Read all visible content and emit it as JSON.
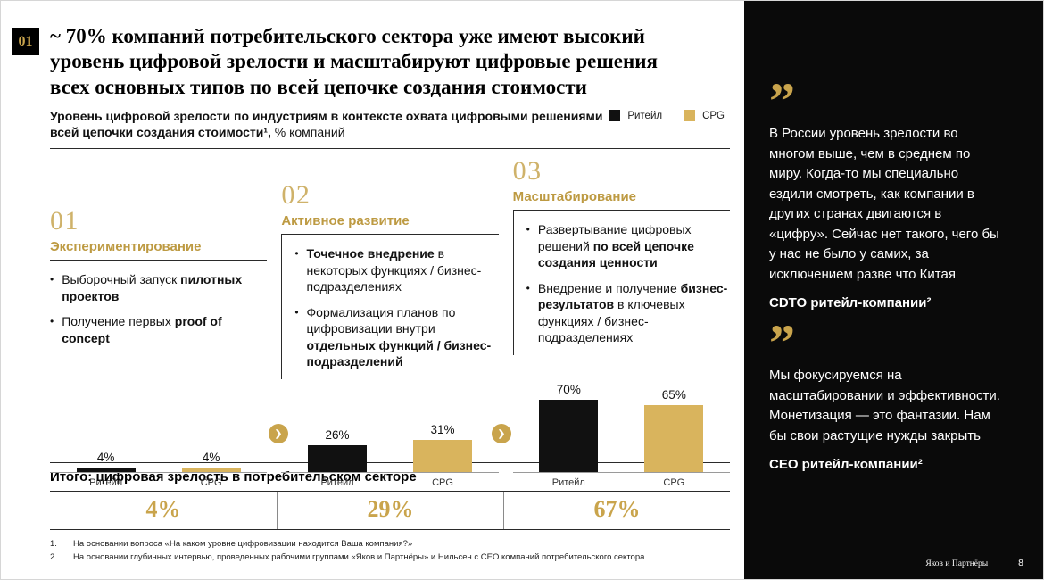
{
  "colors": {
    "retail": "#111111",
    "cpg": "#D9B45D",
    "gold": "#C9A44C",
    "black_badge": "#000000"
  },
  "icons": {
    "chevron": "❯",
    "quote": "”"
  },
  "header": {
    "badge": "01",
    "title": "~ 70% компаний потребительского сектора уже имеют высокий уровень цифровой зрелости и масштабируют цифровые решения всех основных типов по всей цепочке создания стоимости",
    "subtitle_bold": "Уровень цифровой зрелости по индустриям в контексте охвата цифровыми решениями всей цепочки создания стоимости¹,",
    "subtitle_normal": "% компаний"
  },
  "legend": {
    "items": [
      {
        "label": "Ритейл"
      },
      {
        "label": "CPG"
      }
    ]
  },
  "stages": [
    {
      "number": "01",
      "name": "Экспериментирование",
      "bullets": [
        {
          "segments": [
            {
              "text": "Выборочный запуск",
              "bold": false
            },
            {
              "text": "пилотных проектов",
              "bold": true
            }
          ]
        },
        {
          "segments": [
            {
              "text": "Получение первых",
              "bold": false
            },
            {
              "text": "proof of concept",
              "bold": true
            }
          ]
        }
      ],
      "bars": [
        {
          "label": "Ритейл",
          "display": "4%"
        },
        {
          "label": "CPG",
          "display": "4%"
        }
      ]
    },
    {
      "number": "02",
      "name": "Активное развитие",
      "bullets": [
        {
          "segments": [
            {
              "text": "Точечное внедрение",
              "bold": true
            },
            {
              "text": "в некоторых функциях / бизнес-подразделениях",
              "bold": false
            }
          ]
        },
        {
          "segments": [
            {
              "text": "Формализация планов по цифровизации внутри",
              "bold": false
            },
            {
              "text": "отдельных функций / бизнес-подразделений",
              "bold": true
            }
          ]
        }
      ],
      "bars": [
        {
          "label": "Ритейл",
          "display": "26%"
        },
        {
          "label": "CPG",
          "display": "31%"
        }
      ]
    },
    {
      "number": "03",
      "name": "Масштабирование",
      "bullets": [
        {
          "segments": [
            {
              "text": "Развертывание цифровых решений",
              "bold": false
            },
            {
              "text": "по всей цепочке создания ценности",
              "bold": true
            }
          ]
        },
        {
          "segments": [
            {
              "text": "Внедрение и получение",
              "bold": false
            },
            {
              "text": "бизнес-результатов",
              "bold": true
            },
            {
              "text": "в ключевых функциях / бизнес-подразделениях",
              "bold": false
            }
          ]
        }
      ],
      "bars": [
        {
          "label": "Ритейл",
          "display": "70%"
        },
        {
          "label": "CPG",
          "display": "65%"
        }
      ]
    }
  ],
  "chart_data": {
    "type": "bar",
    "title": "Уровень цифровой зрелости по индустриям в контексте охвата цифровыми решениями всей цепочки создания стоимости, % компаний",
    "categories": [
      "Ритейл",
      "CPG"
    ],
    "groups": [
      {
        "stage": "01 Экспериментирование",
        "values": [
          4,
          4
        ]
      },
      {
        "stage": "02 Активное развитие",
        "values": [
          26,
          31
        ]
      },
      {
        "stage": "03 Масштабирование",
        "values": [
          70,
          65
        ]
      }
    ],
    "totals": [
      4,
      29,
      67
    ],
    "unit": "%",
    "ylim": [
      0,
      100
    ],
    "series_colors": {
      "Ритейл": "#111111",
      "CPG": "#D9B45D"
    },
    "legend_position": "top-right",
    "grid": false
  },
  "totals": {
    "heading": "Итого: цифровая зрелость в потребительском секторе",
    "values": [
      "4%",
      "29%",
      "67%"
    ]
  },
  "footnotes": [
    {
      "num": "1.",
      "text": "На основании вопроса «На каком уровне цифровизации находится Ваша компания?»"
    },
    {
      "num": "2.",
      "text": "На основании глубинных интервью, проведенных рабочими группами «Яков и Партнёры» и Нильсен с CEO компаний потребительского сектора"
    }
  ],
  "sidebar": {
    "quotes": [
      {
        "text": "В России уровень зрелости во многом выше, чем в среднем по миру. Когда-то мы специально ездили смотреть, как компании в других странах двигаются в «цифру». Сейчас нет такого, чего бы у нас не было у самих, за исключением разве что Китая",
        "attribution": "CDTO ритейл-компании²"
      },
      {
        "text": "Мы фокусируемся на масштабировании и эффективности. Монетизация — это фантазии. Нам бы свои растущие нужды закрыть",
        "attribution": "CEO ритейл-компании²"
      }
    ],
    "brand": "Яков и Партнёры",
    "page_number": "8"
  }
}
